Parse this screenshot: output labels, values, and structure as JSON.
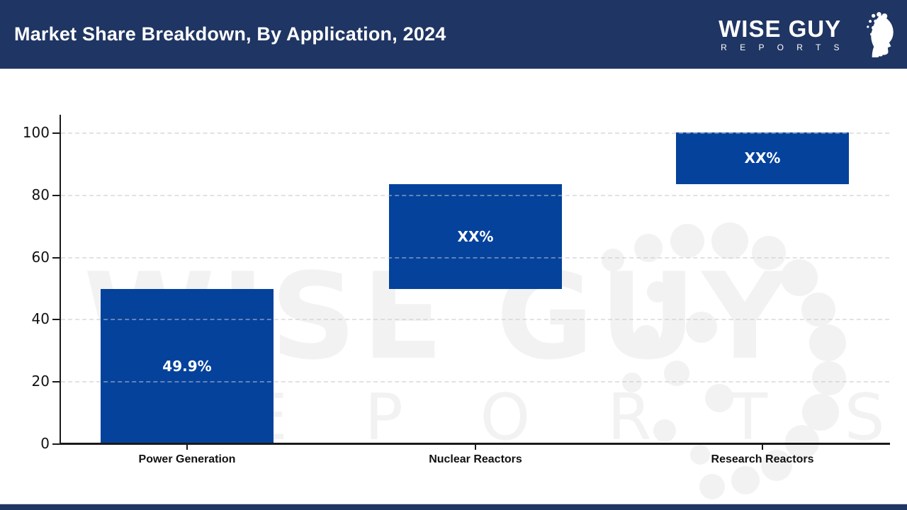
{
  "header": {
    "title": "Market Share Breakdown, By Application, 2024",
    "logo": {
      "line1": "WISE GUY",
      "line2": "R E P O R T S"
    }
  },
  "watermark": {
    "line1": "WISE GUY",
    "line2": "R E P O R T S"
  },
  "chart_data": {
    "type": "bar",
    "subtype": "waterfall-stacked-breakdown",
    "title": "Market Share Breakdown, By Application, 2024",
    "categories": [
      "Power Generation",
      "Nuclear Reactors",
      "Research Reactors"
    ],
    "segments": [
      {
        "category": "Power Generation",
        "start": 0,
        "end": 49.9,
        "label": "49.9%"
      },
      {
        "category": "Nuclear Reactors",
        "start": 49.9,
        "end": 83.6,
        "label": "XX%"
      },
      {
        "category": "Research Reactors",
        "start": 83.6,
        "end": 100.3,
        "label": "XX%"
      }
    ],
    "xlabel": "",
    "ylabel": "",
    "ylim": [
      0,
      100
    ],
    "yticks": [
      0,
      20,
      40,
      60,
      80,
      100
    ],
    "grid": "horizontal-dashed",
    "legend": "none"
  },
  "colors": {
    "header_bg": "#1f3563",
    "footer_bg": "#1f3563",
    "bar": "#04429c",
    "bar_label": "#ffffff",
    "axis": "#1a1a1a",
    "tick_label": "#111111",
    "watermark": "#f2f2f2"
  }
}
